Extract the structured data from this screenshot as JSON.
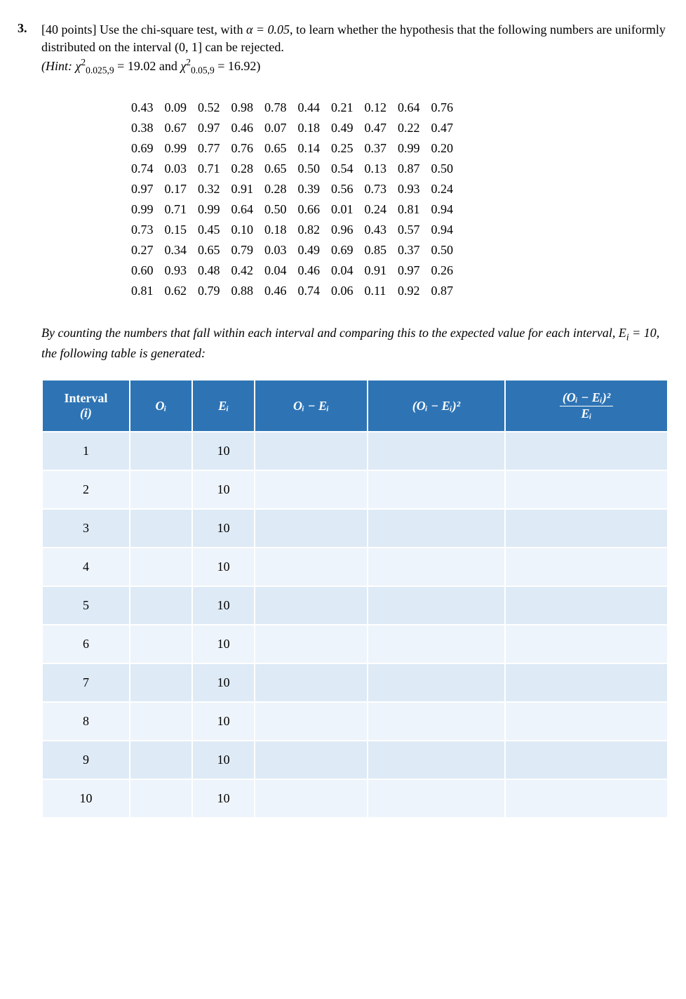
{
  "problem": {
    "number": "3.",
    "points_prefix": "[40 points] Use the chi-square test, with ",
    "alpha": "α = 0.05",
    "text_mid": ", to learn whether the hypothesis that the following numbers are uniformly distributed on the interval (0, 1] can be rejected.",
    "hint_open": "(Hint: ",
    "chi1_sym": "χ",
    "chi1_sup": "2",
    "chi1_sub": "0.025,9",
    "chi1_eq": " = 19.02 and ",
    "chi2_sym": "χ",
    "chi2_sup": "2",
    "chi2_sub": "0.05,9",
    "chi2_eq": " = 16.92)",
    "data_rows": [
      [
        "0.43",
        "0.09",
        "0.52",
        "0.98",
        "0.78",
        "0.44",
        "0.21",
        "0.12",
        "0.64",
        "0.76"
      ],
      [
        "0.38",
        "0.67",
        "0.97",
        "0.46",
        "0.07",
        "0.18",
        "0.49",
        "0.47",
        "0.22",
        "0.47"
      ],
      [
        "0.69",
        "0.99",
        "0.77",
        "0.76",
        "0.65",
        "0.14",
        "0.25",
        "0.37",
        "0.99",
        "0.20"
      ],
      [
        "0.74",
        "0.03",
        "0.71",
        "0.28",
        "0.65",
        "0.50",
        "0.54",
        "0.13",
        "0.87",
        "0.50"
      ],
      [
        "0.97",
        "0.17",
        "0.32",
        "0.91",
        "0.28",
        "0.39",
        "0.56",
        "0.73",
        "0.93",
        "0.24"
      ],
      [
        "0.99",
        "0.71",
        "0.99",
        "0.64",
        "0.50",
        "0.66",
        "0.01",
        "0.24",
        "0.81",
        "0.94"
      ],
      [
        "0.73",
        "0.15",
        "0.45",
        "0.10",
        "0.18",
        "0.82",
        "0.96",
        "0.43",
        "0.57",
        "0.94"
      ],
      [
        "0.27",
        "0.34",
        "0.65",
        "0.79",
        "0.03",
        "0.49",
        "0.69",
        "0.85",
        "0.37",
        "0.50"
      ],
      [
        "0.60",
        "0.93",
        "0.48",
        "0.42",
        "0.04",
        "0.46",
        "0.04",
        "0.91",
        "0.97",
        "0.26"
      ],
      [
        "0.81",
        "0.62",
        "0.79",
        "0.88",
        "0.46",
        "0.74",
        "0.06",
        "0.11",
        "0.92",
        "0.87"
      ]
    ],
    "explain_pre": "By counting the numbers that fall within each interval and comparing this to the expected value for each interval, ",
    "explain_ei": "E",
    "explain_sub": "i",
    "explain_eq": " = 10",
    "explain_post": ", the following table is generated:"
  },
  "table": {
    "header_colors": {
      "bg": "#2e74b5",
      "fg": "#ffffff"
    },
    "row_colors": {
      "odd": "#deeaf6",
      "even": "#eef4fb"
    },
    "headers": {
      "interval_top": "Interval",
      "interval_bot": "(i)",
      "oi": "Oᵢ",
      "ei": "Eᵢ",
      "diff": "Oᵢ − Eᵢ",
      "sq": "(Oᵢ − Eᵢ)²",
      "ratio_num": "(Oᵢ − Eᵢ)²",
      "ratio_den": "Eᵢ"
    },
    "rows": [
      {
        "interval": "1",
        "oi": "",
        "ei": "10",
        "diff": "",
        "sq": "",
        "ratio": ""
      },
      {
        "interval": "2",
        "oi": "",
        "ei": "10",
        "diff": "",
        "sq": "",
        "ratio": ""
      },
      {
        "interval": "3",
        "oi": "",
        "ei": "10",
        "diff": "",
        "sq": "",
        "ratio": ""
      },
      {
        "interval": "4",
        "oi": "",
        "ei": "10",
        "diff": "",
        "sq": "",
        "ratio": ""
      },
      {
        "interval": "5",
        "oi": "",
        "ei": "10",
        "diff": "",
        "sq": "",
        "ratio": ""
      },
      {
        "interval": "6",
        "oi": "",
        "ei": "10",
        "diff": "",
        "sq": "",
        "ratio": ""
      },
      {
        "interval": "7",
        "oi": "",
        "ei": "10",
        "diff": "",
        "sq": "",
        "ratio": ""
      },
      {
        "interval": "8",
        "oi": "",
        "ei": "10",
        "diff": "",
        "sq": "",
        "ratio": ""
      },
      {
        "interval": "9",
        "oi": "",
        "ei": "10",
        "diff": "",
        "sq": "",
        "ratio": ""
      },
      {
        "interval": "10",
        "oi": "",
        "ei": "10",
        "diff": "",
        "sq": "",
        "ratio": ""
      }
    ]
  }
}
